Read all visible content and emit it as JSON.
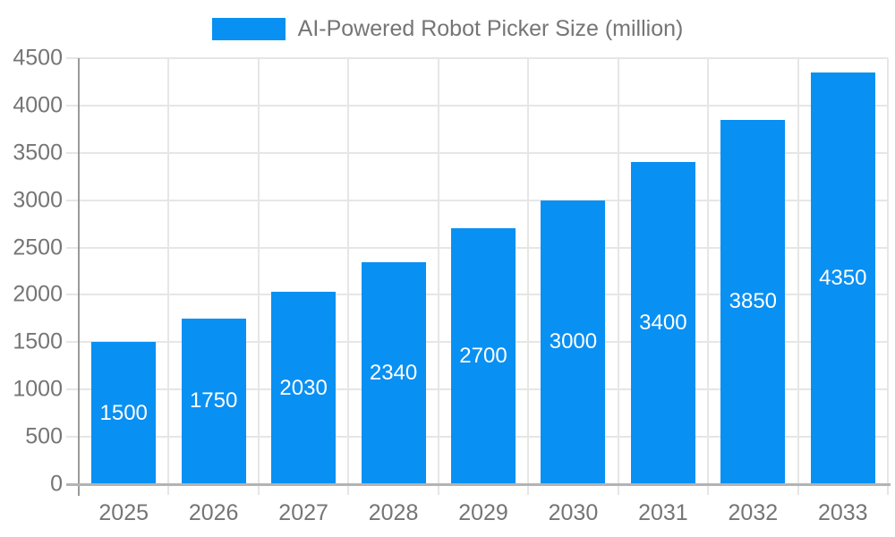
{
  "chart_data": {
    "type": "bar",
    "title": "AI-Powered Robot Picker Size (million)",
    "legend": {
      "position": "top",
      "entries": [
        {
          "label": "AI-Powered Robot Picker Size (million)",
          "color": "#0990f3"
        }
      ]
    },
    "categories": [
      "2025",
      "2026",
      "2027",
      "2028",
      "2029",
      "2030",
      "2031",
      "2032",
      "2033"
    ],
    "series": [
      {
        "name": "AI-Powered Robot Picker Size (million)",
        "values": [
          1500,
          1750,
          2030,
          2340,
          2700,
          3000,
          3400,
          3850,
          4350
        ]
      }
    ],
    "value_labels_shown": true,
    "xlabel": "",
    "ylabel": "",
    "ylim": [
      0,
      4500
    ],
    "y_ticks": [
      0,
      500,
      1000,
      1500,
      2000,
      2500,
      3000,
      3500,
      4000,
      4500
    ],
    "grid": true
  },
  "colors": {
    "bar": "#0990f3",
    "value_label": "#ffffff",
    "tick_label": "#757575",
    "legend_text": "#757575",
    "gridline": "#e6e6e6",
    "y_axis_line": "#9a9a9a",
    "x_axis_line": "#b3b3b3",
    "background": "#ffffff"
  }
}
